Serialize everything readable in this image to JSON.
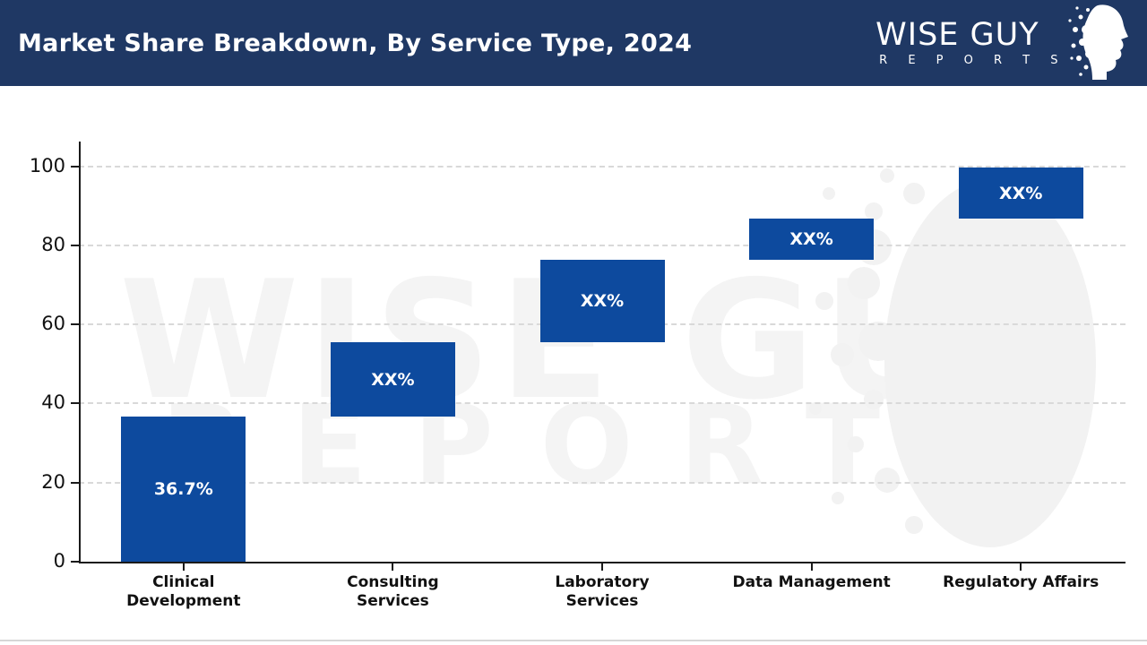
{
  "header": {
    "title": "Market Share Breakdown, By Service Type, 2024",
    "bg_color": "#1f3864",
    "logo": {
      "line1": "WISE GUY",
      "line2": "R E P O R T S"
    }
  },
  "watermark": {
    "line1": "WISE GUY",
    "line2": "REPORTS"
  },
  "chart_data": {
    "type": "bar",
    "subtype": "waterfall",
    "title": "Market Share Breakdown, By Service Type, 2024",
    "categories": [
      "Clinical Development",
      "Consulting Services",
      "Laboratory Services",
      "Data Management",
      "Regulatory Affairs"
    ],
    "category_label_lines": [
      [
        "Clinical",
        "Development"
      ],
      [
        "Consulting",
        "Services"
      ],
      [
        "Laboratory",
        "Services"
      ],
      [
        "Data Management"
      ],
      [
        "Regulatory Affairs"
      ]
    ],
    "segments": [
      {
        "start": 0,
        "end": 36.7,
        "label": "36.7%"
      },
      {
        "start": 36.7,
        "end": 55.5,
        "label": "XX%"
      },
      {
        "start": 55.5,
        "end": 76.4,
        "label": "XX%"
      },
      {
        "start": 76.4,
        "end": 86.8,
        "label": "XX%"
      },
      {
        "start": 86.8,
        "end": 99.6,
        "label": "XX%"
      }
    ],
    "yticks": [
      0,
      20,
      40,
      60,
      80,
      100
    ],
    "ylim": [
      0,
      105
    ],
    "xlabel": "",
    "ylabel": "",
    "legend": null,
    "grid": {
      "horizontal": true,
      "style": "dashed",
      "color": "#d9d9d9"
    },
    "bar_color": "#0d4a9e",
    "bar_label_color": "#ffffff",
    "axis_color": "#1a1a1a"
  }
}
